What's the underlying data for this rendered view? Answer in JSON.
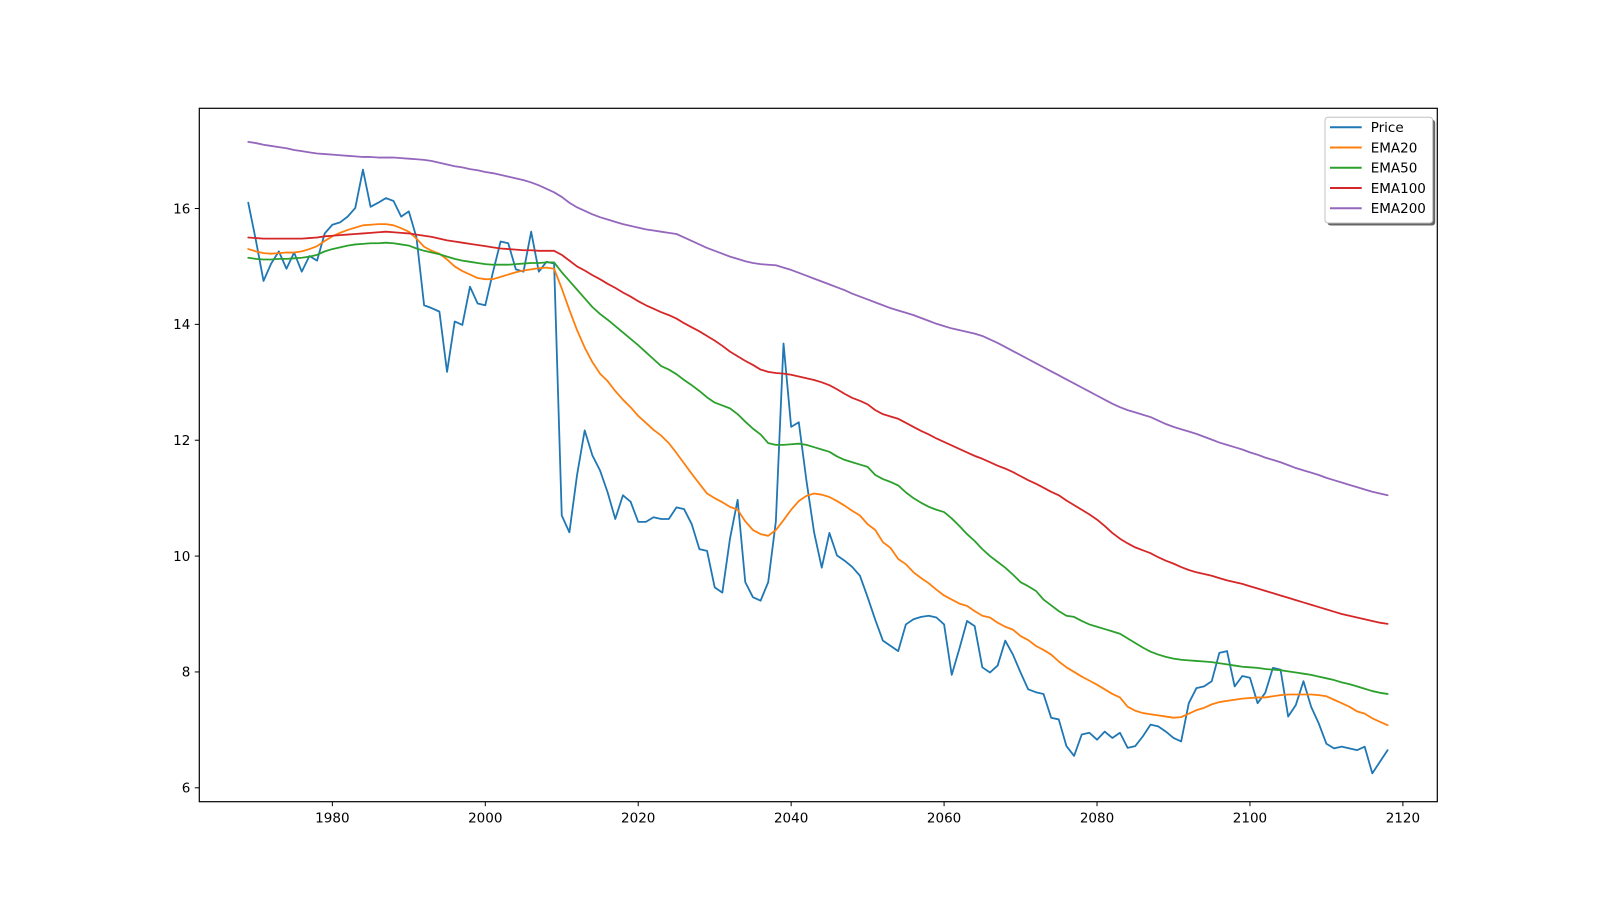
{
  "figure": {
    "background": "#ffffff",
    "axes_edge_color": "#000000"
  },
  "legend": {
    "position": "upper-right",
    "border_color": "#c0c0c0",
    "shadow_color": "#666666",
    "labels": [
      "Price",
      "EMA20",
      "EMA50",
      "EMA100",
      "EMA200"
    ]
  },
  "chart_data": {
    "type": "line",
    "x_start": 1969,
    "x_end": 2118,
    "x_step": 1,
    "xlabel": "",
    "ylabel": "",
    "title": "",
    "grid": false,
    "xticks": [
      1980,
      2000,
      2020,
      2040,
      2060,
      2080,
      2100,
      2120
    ],
    "yticks": [
      6,
      8,
      10,
      12,
      14,
      16
    ],
    "xlim": [
      1962.6,
      2124.5
    ],
    "ylim": [
      5.76,
      17.73
    ],
    "series": [
      {
        "name": "Price",
        "color": "#1f77b4",
        "values": [
          16.1,
          15.45,
          14.75,
          15.05,
          15.26,
          14.96,
          15.24,
          14.91,
          15.18,
          15.1,
          15.57,
          15.72,
          15.76,
          15.86,
          16.01,
          16.67,
          16.03,
          16.1,
          16.18,
          16.13,
          15.86,
          15.95,
          15.5,
          14.33,
          14.28,
          14.22,
          13.18,
          14.05,
          13.99,
          14.65,
          14.36,
          14.33,
          14.9,
          15.43,
          15.4,
          14.95,
          14.91,
          15.6,
          14.91,
          15.08,
          15.05,
          10.7,
          10.41,
          11.4,
          12.17,
          11.74,
          11.48,
          11.1,
          10.64,
          11.05,
          10.94,
          10.59,
          10.59,
          10.67,
          10.64,
          10.64,
          10.84,
          10.81,
          10.55,
          10.12,
          10.09,
          9.46,
          9.37,
          10.3,
          10.97,
          9.55,
          9.29,
          9.23,
          9.55,
          10.6,
          13.67,
          12.23,
          12.31,
          11.3,
          10.41,
          9.8,
          10.4,
          10.01,
          9.92,
          9.81,
          9.66,
          9.29,
          8.9,
          8.54,
          8.45,
          8.36,
          8.82,
          8.91,
          8.95,
          8.97,
          8.94,
          8.82,
          7.95,
          8.4,
          8.88,
          8.79,
          8.08,
          7.99,
          8.11,
          8.54,
          8.3,
          7.99,
          7.7,
          7.65,
          7.62,
          7.21,
          7.18,
          6.72,
          6.55,
          6.92,
          6.95,
          6.83,
          6.97,
          6.86,
          6.95,
          6.69,
          6.72,
          6.89,
          7.09,
          7.06,
          6.97,
          6.86,
          6.8,
          7.46,
          7.72,
          7.75,
          7.84,
          8.33,
          8.36,
          7.75,
          7.93,
          7.9,
          7.46,
          7.64,
          8.07,
          8.04,
          7.23,
          7.43,
          7.84,
          7.4,
          7.11,
          6.76,
          6.68,
          6.71,
          6.68,
          6.65,
          6.71,
          6.25,
          6.45,
          6.65
        ]
      },
      {
        "name": "EMA20",
        "color": "#ff7f0e",
        "values": [
          15.3,
          15.26,
          15.23,
          15.22,
          15.23,
          15.24,
          15.24,
          15.26,
          15.3,
          15.35,
          15.44,
          15.52,
          15.58,
          15.63,
          15.67,
          15.71,
          15.72,
          15.73,
          15.73,
          15.71,
          15.66,
          15.6,
          15.48,
          15.34,
          15.27,
          15.22,
          15.12,
          15.0,
          14.92,
          14.86,
          14.8,
          14.78,
          14.78,
          14.82,
          14.86,
          14.9,
          14.93,
          14.95,
          14.97,
          14.98,
          14.96,
          14.62,
          14.25,
          13.9,
          13.6,
          13.35,
          13.15,
          13.02,
          12.85,
          12.7,
          12.57,
          12.42,
          12.3,
          12.18,
          12.08,
          11.95,
          11.78,
          11.6,
          11.42,
          11.25,
          11.08,
          11.0,
          10.93,
          10.85,
          10.8,
          10.6,
          10.45,
          10.38,
          10.35,
          10.45,
          10.62,
          10.8,
          10.95,
          11.04,
          11.08,
          11.06,
          11.02,
          10.95,
          10.87,
          10.78,
          10.7,
          10.55,
          10.45,
          10.24,
          10.14,
          9.95,
          9.86,
          9.72,
          9.62,
          9.53,
          9.42,
          9.32,
          9.25,
          9.18,
          9.14,
          9.05,
          8.97,
          8.94,
          8.85,
          8.78,
          8.73,
          8.62,
          8.55,
          8.45,
          8.38,
          8.3,
          8.18,
          8.08,
          8.0,
          7.92,
          7.85,
          7.78,
          7.7,
          7.62,
          7.56,
          7.4,
          7.33,
          7.29,
          7.27,
          7.25,
          7.23,
          7.21,
          7.22,
          7.28,
          7.34,
          7.38,
          7.44,
          7.48,
          7.5,
          7.52,
          7.54,
          7.55,
          7.56,
          7.56,
          7.58,
          7.6,
          7.61,
          7.61,
          7.61,
          7.61,
          7.6,
          7.58,
          7.52,
          7.46,
          7.4,
          7.32,
          7.28,
          7.2,
          7.14,
          7.08
        ]
      },
      {
        "name": "EMA50",
        "color": "#2ca02c",
        "values": [
          15.15,
          15.13,
          15.12,
          15.12,
          15.13,
          15.13,
          15.14,
          15.15,
          15.17,
          15.2,
          15.26,
          15.3,
          15.33,
          15.36,
          15.38,
          15.39,
          15.4,
          15.4,
          15.41,
          15.4,
          15.38,
          15.36,
          15.31,
          15.27,
          15.24,
          15.21,
          15.17,
          15.13,
          15.1,
          15.08,
          15.06,
          15.04,
          15.03,
          15.03,
          15.03,
          15.04,
          15.05,
          15.06,
          15.06,
          15.07,
          15.07,
          14.9,
          14.75,
          14.6,
          14.45,
          14.3,
          14.18,
          14.08,
          13.97,
          13.86,
          13.75,
          13.64,
          13.52,
          13.4,
          13.28,
          13.22,
          13.14,
          13.04,
          12.95,
          12.85,
          12.74,
          12.65,
          12.6,
          12.55,
          12.45,
          12.32,
          12.2,
          12.1,
          11.95,
          11.92,
          11.92,
          11.93,
          11.94,
          11.92,
          11.88,
          11.84,
          11.8,
          11.72,
          11.66,
          11.62,
          11.58,
          11.54,
          11.4,
          11.33,
          11.28,
          11.22,
          11.1,
          11.0,
          10.92,
          10.85,
          10.8,
          10.76,
          10.65,
          10.52,
          10.38,
          10.26,
          10.12,
          10.0,
          9.9,
          9.8,
          9.68,
          9.55,
          9.48,
          9.4,
          9.25,
          9.15,
          9.05,
          8.97,
          8.95,
          8.88,
          8.82,
          8.78,
          8.74,
          8.7,
          8.66,
          8.58,
          8.5,
          8.42,
          8.35,
          8.3,
          8.26,
          8.23,
          8.21,
          8.2,
          8.19,
          8.18,
          8.17,
          8.15,
          8.13,
          8.11,
          8.09,
          8.08,
          8.07,
          8.05,
          8.04,
          8.03,
          8.01,
          7.99,
          7.97,
          7.95,
          7.92,
          7.89,
          7.86,
          7.82,
          7.79,
          7.75,
          7.71,
          7.67,
          7.64,
          7.62
        ]
      },
      {
        "name": "EMA100",
        "color": "#d62728",
        "values": [
          15.5,
          15.49,
          15.48,
          15.48,
          15.48,
          15.48,
          15.48,
          15.48,
          15.49,
          15.5,
          15.52,
          15.53,
          15.54,
          15.55,
          15.56,
          15.57,
          15.58,
          15.59,
          15.6,
          15.59,
          15.58,
          15.57,
          15.55,
          15.53,
          15.51,
          15.48,
          15.45,
          15.43,
          15.41,
          15.39,
          15.37,
          15.35,
          15.33,
          15.31,
          15.3,
          15.29,
          15.28,
          15.28,
          15.27,
          15.27,
          15.27,
          15.2,
          15.1,
          15.0,
          14.93,
          14.85,
          14.78,
          14.7,
          14.63,
          14.55,
          14.48,
          14.4,
          14.33,
          14.27,
          14.21,
          14.16,
          14.1,
          14.02,
          13.95,
          13.88,
          13.8,
          13.72,
          13.63,
          13.53,
          13.45,
          13.37,
          13.3,
          13.22,
          13.18,
          13.16,
          13.15,
          13.13,
          13.1,
          13.07,
          13.04,
          13.0,
          12.95,
          12.88,
          12.8,
          12.73,
          12.68,
          12.62,
          12.52,
          12.45,
          12.41,
          12.37,
          12.3,
          12.23,
          12.16,
          12.1,
          12.03,
          11.97,
          11.91,
          11.85,
          11.79,
          11.73,
          11.68,
          11.62,
          11.56,
          11.51,
          11.45,
          11.38,
          11.31,
          11.25,
          11.18,
          11.11,
          11.05,
          10.96,
          10.88,
          10.8,
          10.72,
          10.63,
          10.52,
          10.4,
          10.3,
          10.22,
          10.15,
          10.1,
          10.05,
          9.98,
          9.92,
          9.87,
          9.81,
          9.76,
          9.72,
          9.69,
          9.66,
          9.62,
          9.58,
          9.55,
          9.52,
          9.48,
          9.44,
          9.4,
          9.36,
          9.32,
          9.28,
          9.24,
          9.2,
          9.16,
          9.12,
          9.08,
          9.04,
          9.0,
          8.97,
          8.94,
          8.91,
          8.88,
          8.85,
          8.83
        ]
      },
      {
        "name": "EMA200",
        "color": "#9467bd",
        "values": [
          17.15,
          17.13,
          17.1,
          17.08,
          17.06,
          17.04,
          17.01,
          16.99,
          16.97,
          16.95,
          16.94,
          16.93,
          16.92,
          16.91,
          16.9,
          16.89,
          16.89,
          16.88,
          16.88,
          16.88,
          16.87,
          16.86,
          16.85,
          16.84,
          16.82,
          16.79,
          16.76,
          16.73,
          16.71,
          16.68,
          16.66,
          16.63,
          16.61,
          16.58,
          16.55,
          16.52,
          16.49,
          16.45,
          16.4,
          16.34,
          16.28,
          16.2,
          16.1,
          16.02,
          15.96,
          15.9,
          15.85,
          15.81,
          15.77,
          15.73,
          15.7,
          15.67,
          15.64,
          15.62,
          15.6,
          15.58,
          15.56,
          15.5,
          15.44,
          15.38,
          15.32,
          15.27,
          15.22,
          15.17,
          15.13,
          15.09,
          15.06,
          15.04,
          15.03,
          15.02,
          14.98,
          14.94,
          14.89,
          14.84,
          14.79,
          14.74,
          14.69,
          14.64,
          14.59,
          14.53,
          14.48,
          14.43,
          14.38,
          14.33,
          14.28,
          14.24,
          14.2,
          14.16,
          14.11,
          14.06,
          14.01,
          13.97,
          13.93,
          13.9,
          13.87,
          13.84,
          13.8,
          13.74,
          13.68,
          13.61,
          13.54,
          13.47,
          13.4,
          13.33,
          13.26,
          13.19,
          13.12,
          13.05,
          12.98,
          12.91,
          12.84,
          12.77,
          12.7,
          12.63,
          12.57,
          12.52,
          12.48,
          12.44,
          12.4,
          12.34,
          12.28,
          12.23,
          12.19,
          12.15,
          12.11,
          12.06,
          12.01,
          11.96,
          11.92,
          11.88,
          11.84,
          11.79,
          11.75,
          11.7,
          11.66,
          11.62,
          11.57,
          11.52,
          11.48,
          11.44,
          11.4,
          11.35,
          11.31,
          11.27,
          11.23,
          11.19,
          11.15,
          11.11,
          11.08,
          11.05
        ]
      }
    ]
  }
}
